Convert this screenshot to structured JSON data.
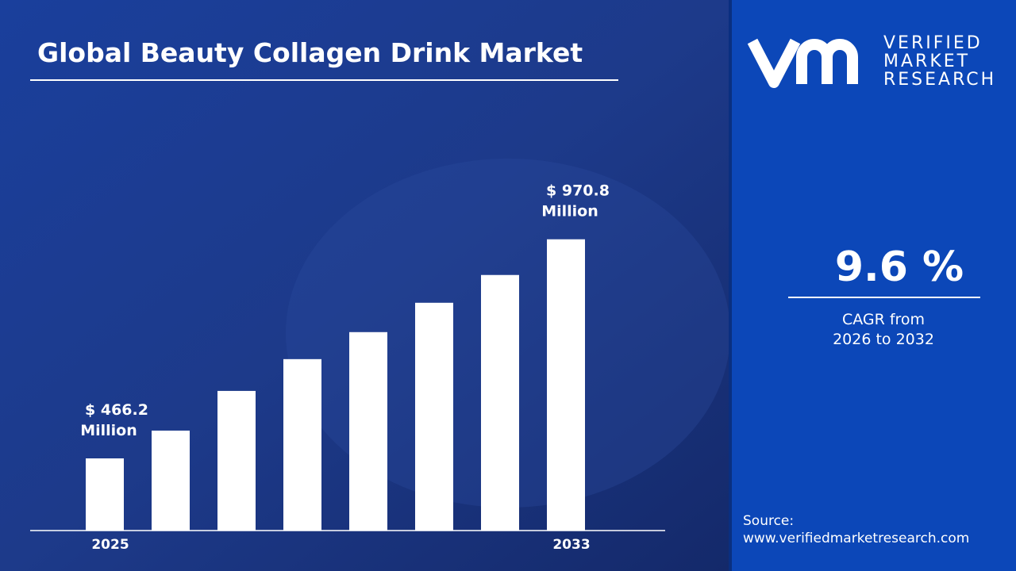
{
  "chart_data": {
    "type": "bar",
    "title": "Global Beauty Collagen Drink Market",
    "categories": [
      "2025",
      null,
      null,
      null,
      null,
      null,
      null,
      "2033"
    ],
    "values": [
      466.2,
      530.2,
      621.6,
      694.8,
      757.0,
      824.6,
      888.6,
      970.8
    ],
    "value_labels": [
      "$ 466.2 Million",
      null,
      null,
      null,
      null,
      null,
      null,
      "$ 970.8 Million"
    ],
    "color": "#ffffff",
    "ylim": [
      300,
      1100
    ]
  },
  "sidebar": {
    "logo": [
      "VERIFIED",
      "MARKET",
      "RESEARCH"
    ],
    "cagr_value": "9.6 %",
    "cagr_text": [
      "CAGR from",
      "2026 to 2032"
    ],
    "source_label": "Source:",
    "source_url": "www.verifiedmarketresearch.com"
  }
}
